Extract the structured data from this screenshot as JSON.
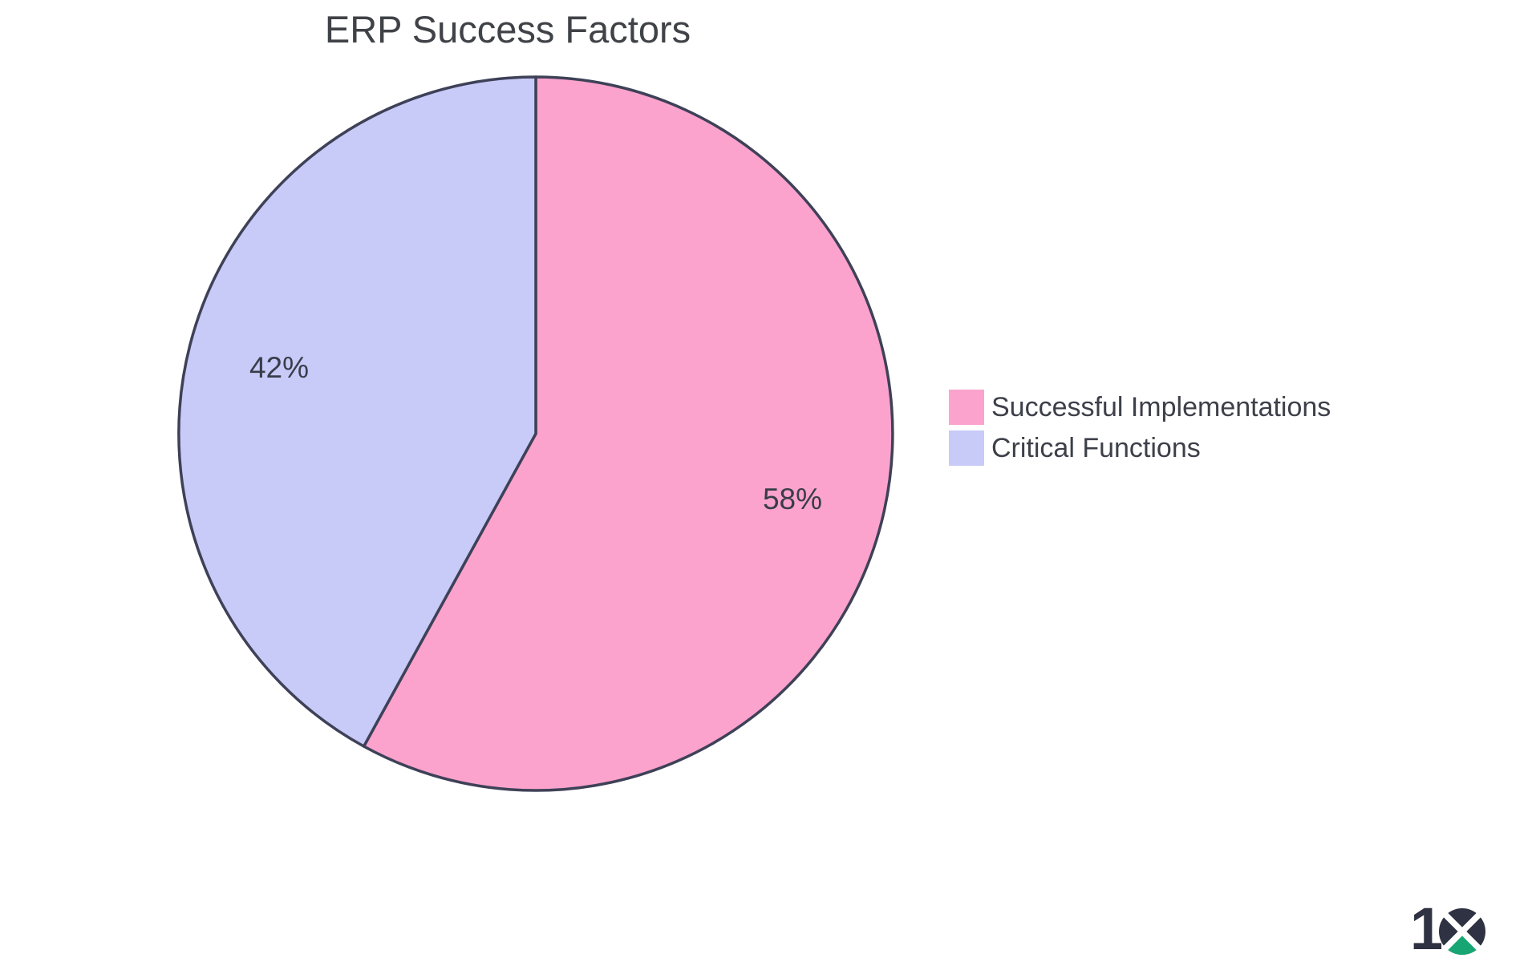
{
  "page": {
    "background": "#FFFFFF"
  },
  "chart_data": {
    "type": "pie",
    "title": "ERP Success Factors",
    "slices": [
      {
        "label": "Successful Implementations",
        "value": 58,
        "display": "58%",
        "color": "#FBA3CD"
      },
      {
        "label": "Critical Functions",
        "value": 42,
        "display": "42%",
        "color": "#C8CAF8"
      }
    ],
    "start_angle": "top",
    "direction": "clockwise",
    "stroke_color": "#3E4157",
    "label_color": "#393D4A",
    "legend_position": "middle-right",
    "grid": false
  },
  "watermark": {
    "text": "1",
    "text_color": "#2E3242",
    "circle_dark": "#2E3242",
    "circle_accent": "#17A673",
    "x_color": "#FFFFFF"
  }
}
